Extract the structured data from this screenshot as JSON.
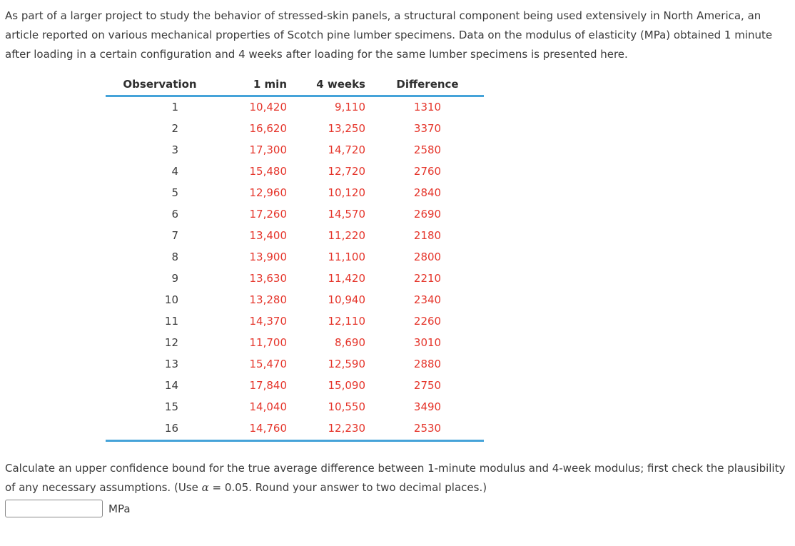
{
  "intro": "As part of a larger project to study the behavior of stressed-skin panels, a structural component being used extensively in North America, an article reported on various mechanical properties of Scotch pine lumber specimens. Data on the modulus of elasticity (MPa) obtained 1 minute after loading in a certain configuration and 4 weeks after loading for the same lumber specimens is presented here.",
  "table": {
    "headers": {
      "observation": "Observation",
      "one_min": "1 min",
      "four_weeks": "4 weeks",
      "difference": "Difference"
    },
    "rows": [
      {
        "obs": "1",
        "one_min": "10,420",
        "four_weeks": "9,110",
        "difference": "1310"
      },
      {
        "obs": "2",
        "one_min": "16,620",
        "four_weeks": "13,250",
        "difference": "3370"
      },
      {
        "obs": "3",
        "one_min": "17,300",
        "four_weeks": "14,720",
        "difference": "2580"
      },
      {
        "obs": "4",
        "one_min": "15,480",
        "four_weeks": "12,720",
        "difference": "2760"
      },
      {
        "obs": "5",
        "one_min": "12,960",
        "four_weeks": "10,120",
        "difference": "2840"
      },
      {
        "obs": "6",
        "one_min": "17,260",
        "four_weeks": "14,570",
        "difference": "2690"
      },
      {
        "obs": "7",
        "one_min": "13,400",
        "four_weeks": "11,220",
        "difference": "2180"
      },
      {
        "obs": "8",
        "one_min": "13,900",
        "four_weeks": "11,100",
        "difference": "2800"
      },
      {
        "obs": "9",
        "one_min": "13,630",
        "four_weeks": "11,420",
        "difference": "2210"
      },
      {
        "obs": "10",
        "one_min": "13,280",
        "four_weeks": "10,940",
        "difference": "2340"
      },
      {
        "obs": "11",
        "one_min": "14,370",
        "four_weeks": "12,110",
        "difference": "2260"
      },
      {
        "obs": "12",
        "one_min": "11,700",
        "four_weeks": "8,690",
        "difference": "3010"
      },
      {
        "obs": "13",
        "one_min": "15,470",
        "four_weeks": "12,590",
        "difference": "2880"
      },
      {
        "obs": "14",
        "one_min": "17,840",
        "four_weeks": "15,090",
        "difference": "2750"
      },
      {
        "obs": "15",
        "one_min": "14,040",
        "four_weeks": "10,550",
        "difference": "3490"
      },
      {
        "obs": "16",
        "one_min": "14,760",
        "four_weeks": "12,230",
        "difference": "2530"
      }
    ]
  },
  "question": {
    "before_alpha": "Calculate an upper confidence bound for the true average difference between 1-minute modulus and 4-week modulus; first check the plausibility of any necessary assumptions. (Use ",
    "alpha": "α",
    "after_alpha": " = 0.05. Round your answer to two decimal places.)"
  },
  "answer": {
    "value": "",
    "unit": "MPa"
  },
  "colors": {
    "accent_blue": "#45a3d9",
    "data_red": "#e5352b",
    "text_dark": "#3b3b3b"
  }
}
